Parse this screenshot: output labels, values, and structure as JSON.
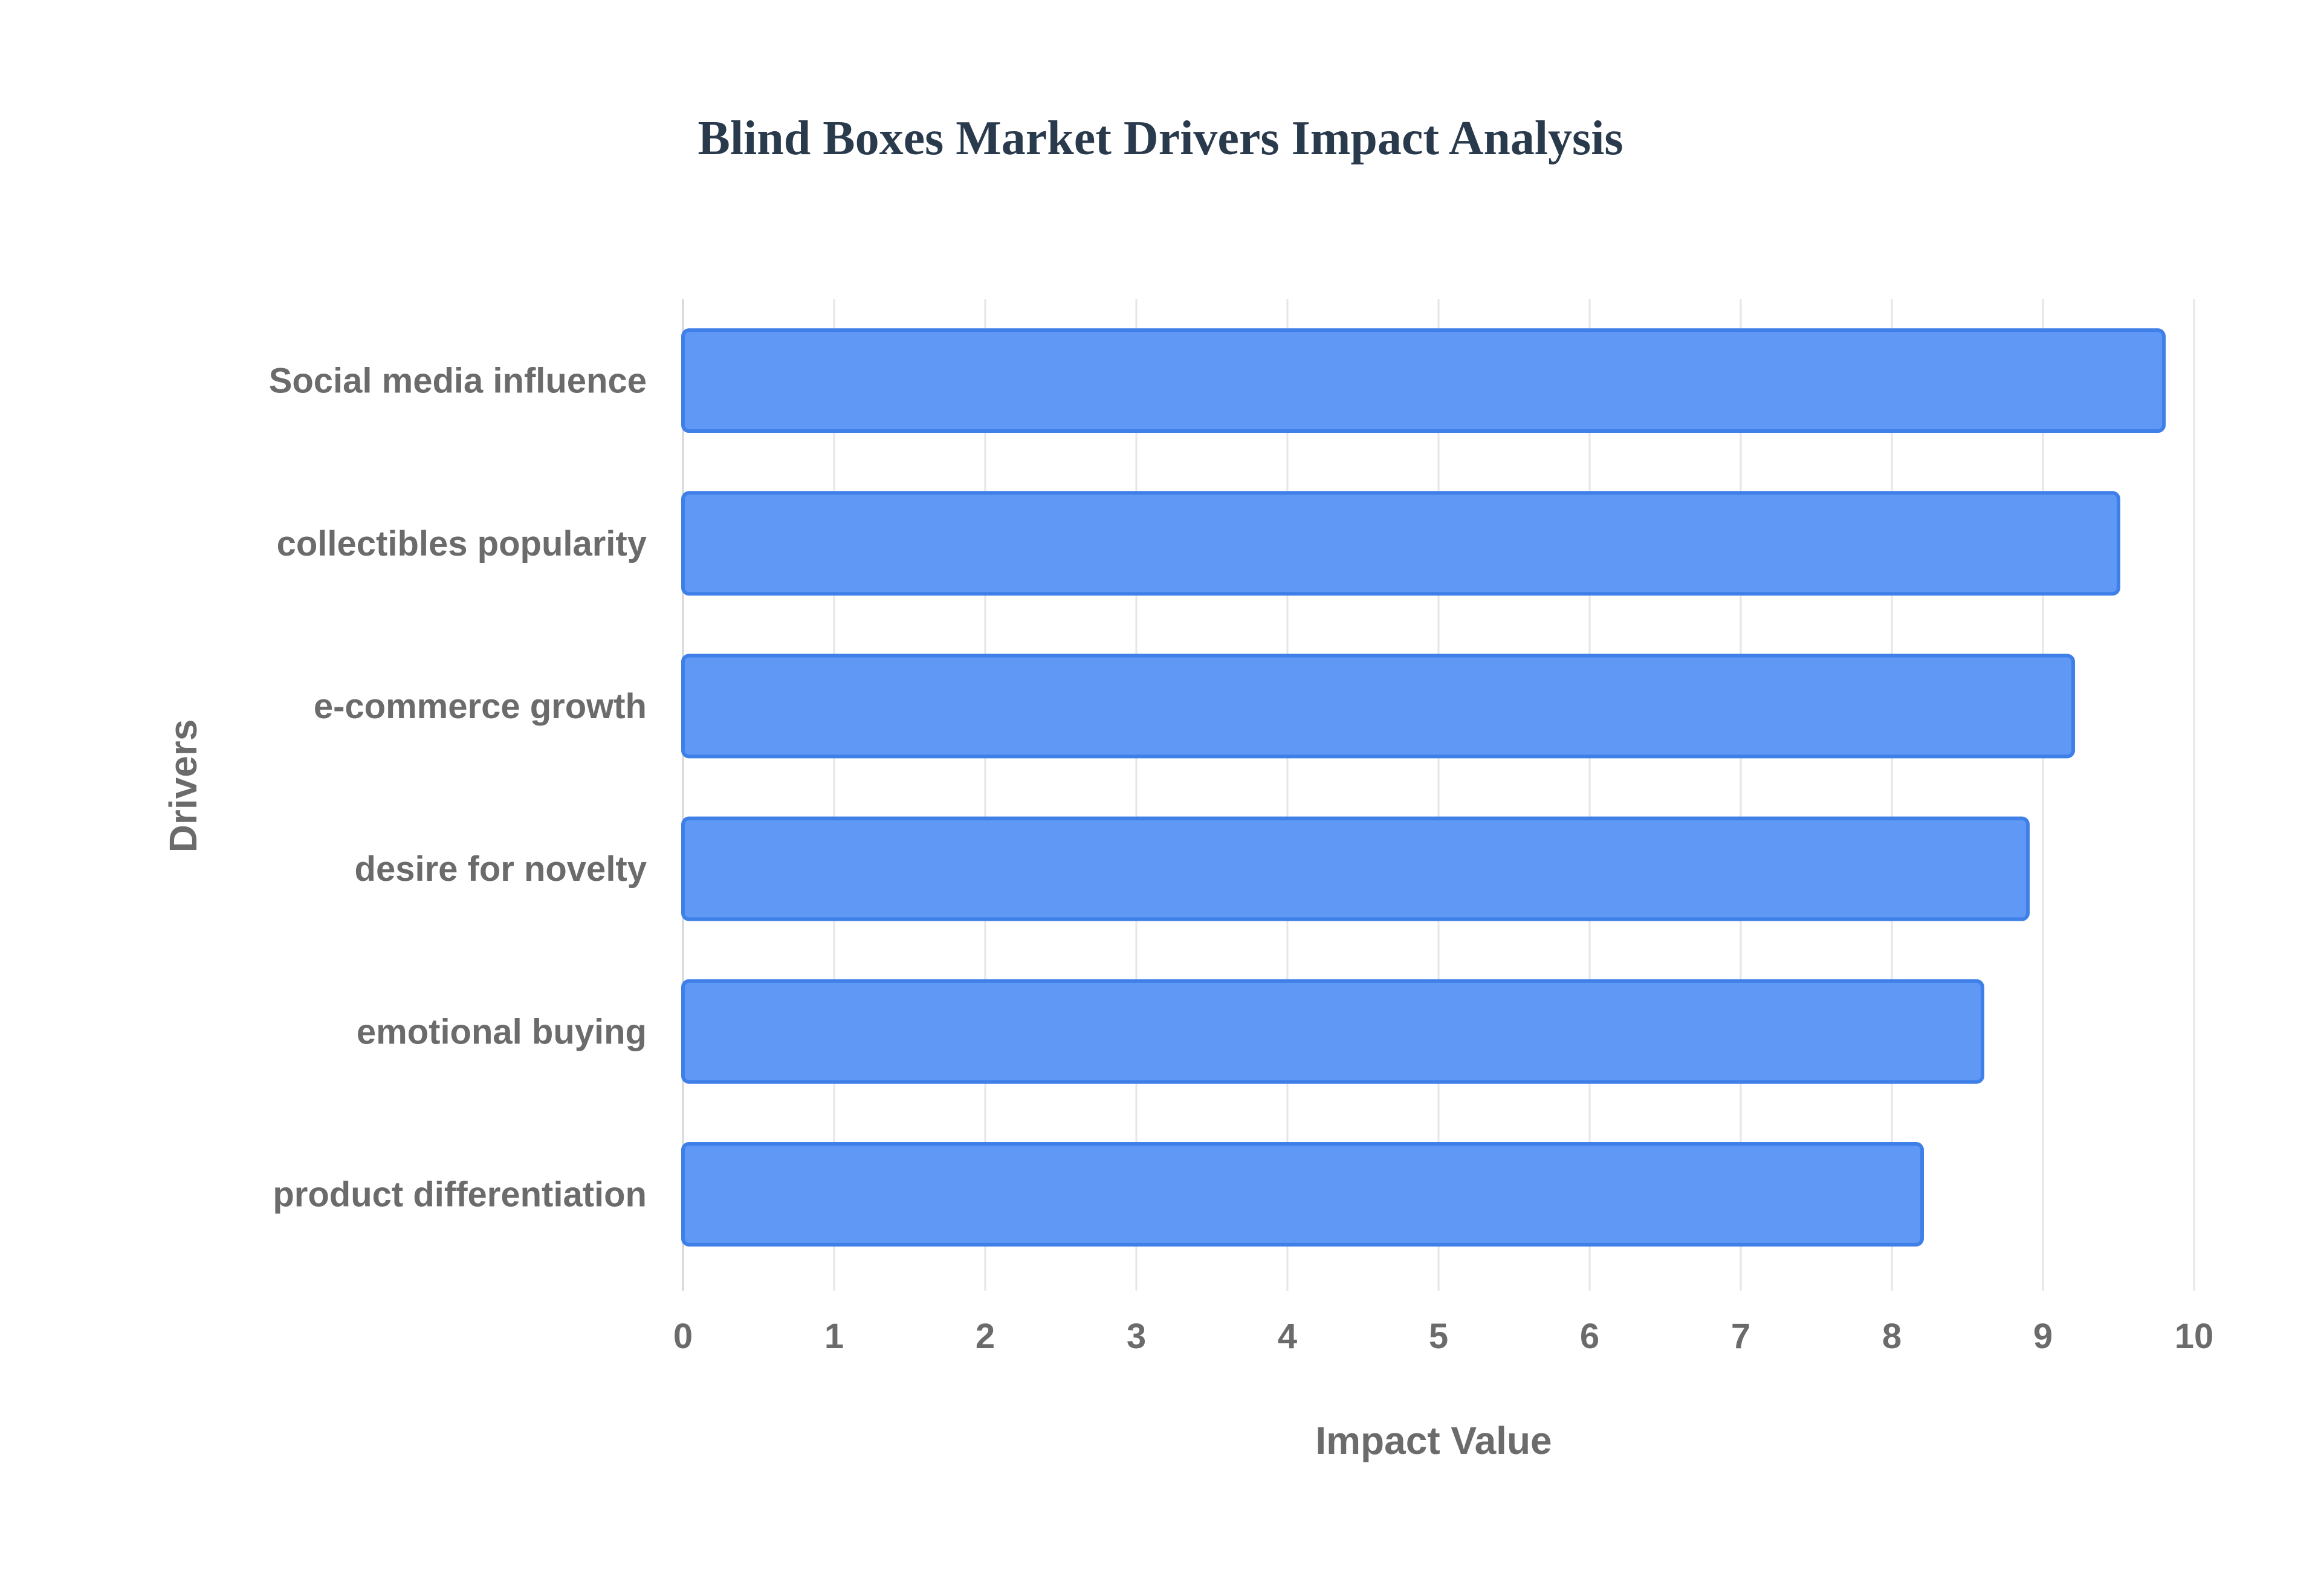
{
  "chart_data": {
    "type": "bar",
    "orientation": "horizontal",
    "title": "Blind Boxes Market Drivers Impact Analysis",
    "xlabel": "Impact Value",
    "ylabel": "Drivers",
    "categories": [
      "Social media influence",
      "collectibles popularity",
      "e-commerce growth",
      "desire for novelty",
      "emotional buying",
      "product differentiation"
    ],
    "values": [
      9.8,
      9.5,
      9.2,
      8.9,
      8.6,
      8.2
    ],
    "xlim": [
      0,
      10
    ],
    "xticks": [
      "0",
      "1",
      "2",
      "3",
      "4",
      "5",
      "6",
      "7",
      "8",
      "9",
      "10"
    ],
    "grid": true,
    "legend": "none",
    "colors": {
      "bar_fill": "#5f98f5",
      "bar_border": "#3f7fe8",
      "grid": "#e6e6e6",
      "text": "#6b6b6b",
      "title": "#2a3a4d"
    }
  }
}
